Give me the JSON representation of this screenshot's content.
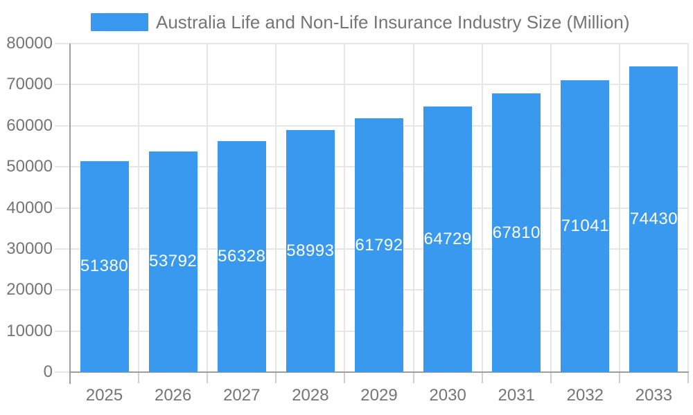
{
  "chart_data": {
    "type": "bar",
    "title": "Australia Life and Non-Life Insurance Industry Size (Million)",
    "categories": [
      "2025",
      "2026",
      "2027",
      "2028",
      "2029",
      "2030",
      "2031",
      "2032",
      "2033"
    ],
    "series": [
      {
        "name": "Australia Life and Non-Life Insurance Industry Size (Million)",
        "values": [
          51380,
          53792,
          56328,
          58993,
          61792,
          64729,
          67810,
          71041,
          74430
        ]
      }
    ],
    "value_labels": [
      "51380",
      "53792",
      "56328",
      "58993",
      "61792",
      "64729",
      "67810",
      "71041",
      "74430"
    ],
    "xlabel": "",
    "ylabel": "",
    "ylim": [
      0,
      80000
    ],
    "yticks": [
      0,
      10000,
      20000,
      30000,
      40000,
      50000,
      60000,
      70000,
      80000
    ],
    "grid": true,
    "legend_position": "top",
    "colors": {
      "bar": "#3999EF",
      "bar_label": "#FFFFFF",
      "axis_text": "#757575",
      "axis_line": "#9E9E9E",
      "gridline": "#E6E6E6",
      "tick": "#CFCFCF",
      "background": "#FFFFFF"
    }
  }
}
